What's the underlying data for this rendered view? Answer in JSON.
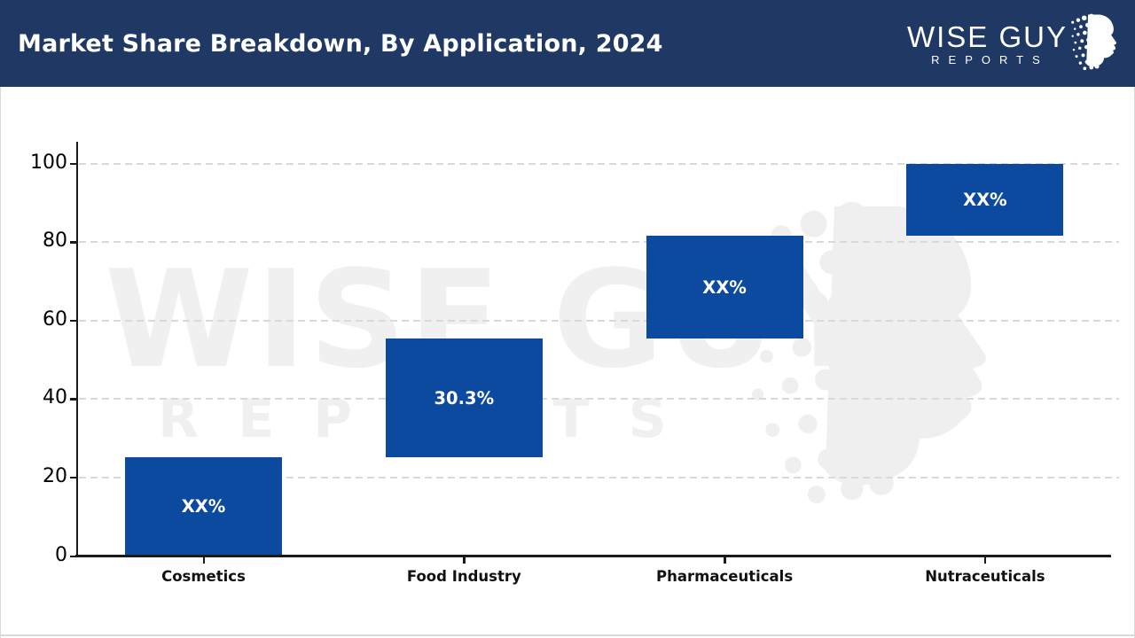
{
  "header": {
    "title": "Market Share Breakdown, By Application, 2024",
    "logo": {
      "line1": "WISE GUY",
      "line2": "REPORTS"
    }
  },
  "watermark": {
    "line1": "WISE GUY",
    "line2": "REPORTS"
  },
  "colors": {
    "header_bg": "#1f3864",
    "bar": "#0b4a9e",
    "grid": "#d9d9d9",
    "axis": "#1a1a1a",
    "bar_label": "#ffffff",
    "watermark": "#f0f0f0"
  },
  "chart_data": {
    "type": "bar",
    "subtype": "waterfall",
    "title": "Market Share Breakdown, By Application, 2024",
    "categories": [
      "Cosmetics",
      "Food Industry",
      "Pharmaceuticals",
      "Nutraceuticals"
    ],
    "segments": [
      {
        "category": "Cosmetics",
        "start": 0,
        "end": 25.1,
        "label": "XX%"
      },
      {
        "category": "Food Industry",
        "start": 25.1,
        "end": 55.4,
        "label": "30.3%"
      },
      {
        "category": "Pharmaceuticals",
        "start": 55.4,
        "end": 81.6,
        "label": "XX%"
      },
      {
        "category": "Nutraceuticals",
        "start": 81.6,
        "end": 100,
        "label": "XX%"
      }
    ],
    "yticks": [
      0,
      20,
      40,
      60,
      80,
      100
    ],
    "ylim": [
      0,
      105
    ],
    "xlabel": "",
    "ylabel": "",
    "grid": "horizontal-dashed",
    "legend": "none"
  }
}
